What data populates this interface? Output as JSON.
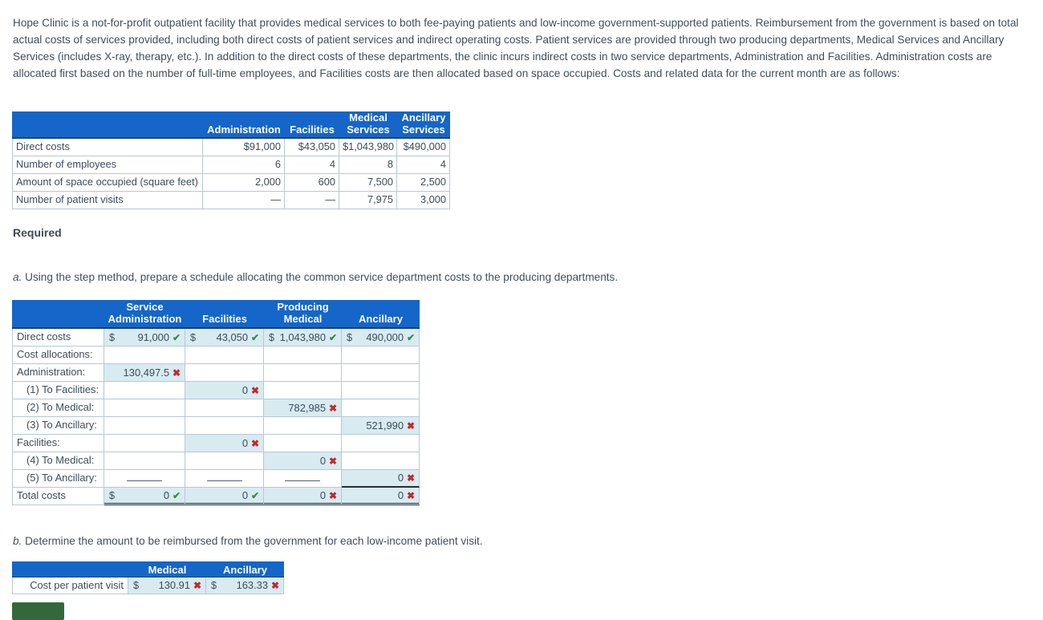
{
  "intro_text": "Hope Clinic is a not-for-profit outpatient facility that provides medical services to both fee-paying patients and low-income government-supported patients. Reimbursement from the government is based on total actual costs of services provided, including both direct costs of patient services and indirect operating costs. Patient services are provided through two producing departments, Medical Services and Ancillary Services (includes X-ray, therapy, etc.). In addition to the direct costs of these departments, the clinic incurs indirect costs in two service departments, Administration and Facilities. Administration costs are allocated first based on the number of full-time employees, and Facilities costs are then allocated based on space occupied. Costs and related data for the current month are as follows:",
  "required_label": "Required",
  "part_a": {
    "prefix": "a.",
    "text": " Using the step method, prepare a schedule allocating the common service department costs to the producing departments."
  },
  "part_b": {
    "prefix": "b.",
    "text": " Determine the amount to be reimbursed from the government for each low-income patient visit."
  },
  "colors": {
    "header_blue": "#1566c8",
    "input_cell_bg": "#d8ebf1",
    "correct_green": "#2e9244",
    "incorrect_red": "#c4282b",
    "button_green": "#33693a"
  },
  "table1": {
    "headers": {
      "admin": "Administration",
      "facilities": "Facilities",
      "medical_line1": "Medical",
      "medical_line2": "Services",
      "ancillary_line1": "Ancillary",
      "ancillary_line2": "Services"
    },
    "rows": [
      {
        "label": "Direct costs",
        "values": [
          "$91,000",
          "$43,050",
          "$1,043,980",
          "$490,000"
        ]
      },
      {
        "label": "Number of employees",
        "values": [
          "6",
          "4",
          "8",
          "4"
        ]
      },
      {
        "label": "Amount of space occupied (square feet)",
        "values": [
          "2,000",
          "600",
          "7,500",
          "2,500"
        ]
      },
      {
        "label": "Number of patient visits",
        "values": [
          "—",
          "—",
          "7,975",
          "3,000"
        ]
      }
    ]
  },
  "table2": {
    "group_headers": {
      "service": "Service",
      "producing": "Producing"
    },
    "headers": {
      "admin": "Administration",
      "facilities": "Facilities",
      "medical": "Medical",
      "ancillary": "Ancillary"
    },
    "rows": [
      {
        "label": "Direct costs",
        "cells": {
          "admin": {
            "dollar": "$",
            "value": "91,000",
            "status": "correct"
          },
          "fac": {
            "dollar": "$",
            "value": "43,050",
            "status": "correct"
          },
          "med": {
            "dollar": "$",
            "value": "1,043,980",
            "status": "correct"
          },
          "anc": {
            "dollar": "$",
            "value": "490,000",
            "status": "correct"
          }
        }
      },
      {
        "label": "Cost allocations:",
        "cells": {}
      },
      {
        "label": "Administration:",
        "cells": {
          "admin": {
            "value": "130,497.5",
            "status": "incorrect"
          }
        }
      },
      {
        "label": "(1) To Facilities:",
        "cells": {
          "fac": {
            "value": "0",
            "status": "incorrect"
          }
        }
      },
      {
        "label": "(2) To Medical:",
        "cells": {
          "med": {
            "value": "782,985",
            "status": "incorrect"
          }
        }
      },
      {
        "label": "(3) To Ancillary:",
        "cells": {
          "anc": {
            "value": "521,990",
            "status": "incorrect"
          }
        }
      },
      {
        "label": "Facilities:",
        "cells": {
          "fac": {
            "value": "0",
            "status": "incorrect"
          }
        }
      },
      {
        "label": "(4) To Medical:",
        "cells": {
          "med": {
            "value": "0",
            "status": "incorrect"
          }
        }
      },
      {
        "label": "(5) To Ancillary:",
        "blank_line_columns": [
          "administration",
          "facilities",
          "medical"
        ],
        "cells": {
          "anc": {
            "value": "0",
            "status": "incorrect"
          }
        }
      },
      {
        "label": "Total costs",
        "cells": {
          "admin": {
            "dollar": "$",
            "value": "0",
            "status": "correct"
          },
          "fac": {
            "value": "0",
            "status": "correct"
          },
          "med": {
            "value": "0",
            "status": "incorrect"
          },
          "anc": {
            "value": "0",
            "status": "incorrect"
          }
        }
      }
    ]
  },
  "table3": {
    "headers": {
      "medical": "Medical",
      "ancillary": "Ancillary"
    },
    "row": {
      "label": "Cost per patient visit",
      "cells": {
        "med": {
          "dollar": "$",
          "value": "130.91",
          "status": "incorrect"
        },
        "anc": {
          "dollar": "$",
          "value": "163.33",
          "status": "incorrect"
        }
      }
    }
  }
}
